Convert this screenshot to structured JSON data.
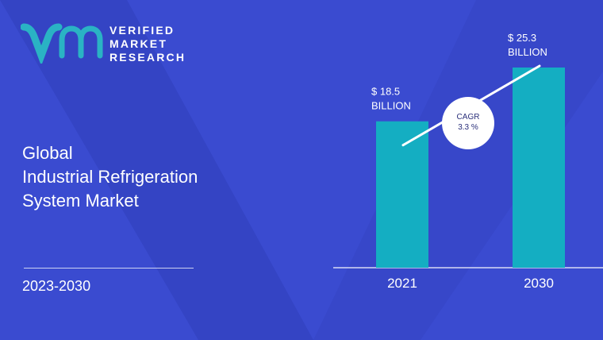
{
  "brand": {
    "line1": "VERIFIED",
    "line2": "MARKET",
    "line3": "RESEARCH",
    "mark_color": "#2ab3c4"
  },
  "report": {
    "title_lines": [
      "Global",
      "Industrial Refrigeration",
      "System Market"
    ],
    "period": "2023-2030"
  },
  "colors": {
    "background": "#3a4bd0",
    "bar": "#14aec2",
    "text": "#ffffff"
  },
  "chart_data": {
    "type": "bar",
    "categories": [
      "2021",
      "2030"
    ],
    "values": [
      18.5,
      25.3
    ],
    "value_labels": [
      {
        "line1": "$ 18.5",
        "line2": "BILLION"
      },
      {
        "line1": "$ 25.3",
        "line2": "BILLION"
      }
    ],
    "annotation": {
      "line1": "CAGR",
      "line2": "3.3 %"
    },
    "title": "",
    "xlabel": "",
    "ylabel": "",
    "grid": false
  }
}
